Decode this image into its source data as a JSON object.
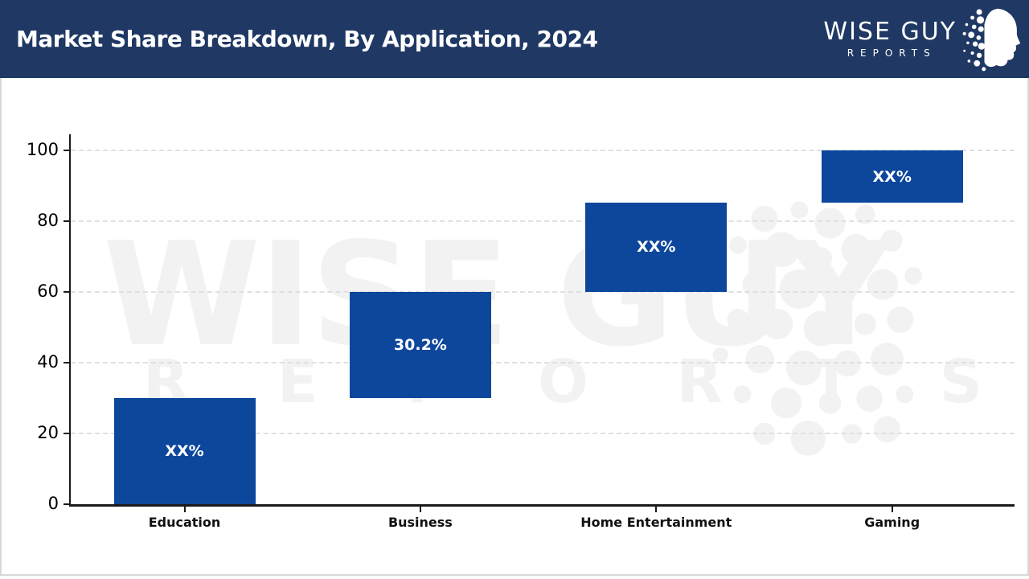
{
  "header": {
    "title": "Market Share Breakdown, By Application, 2024",
    "logo": {
      "line1": "WISE GUY",
      "line2": "REPORTS"
    }
  },
  "watermark": {
    "line1": "WISE GUY",
    "line2": "REPORTS"
  },
  "chart_data": {
    "type": "bar",
    "subtype": "waterfall",
    "title": "Market Share Breakdown, By Application, 2024",
    "xlabel": "",
    "ylabel": "",
    "ylim": [
      0,
      100
    ],
    "yticks": [
      0,
      20,
      40,
      60,
      80,
      100
    ],
    "grid": true,
    "legend": "none",
    "bar_color": "#0c479c",
    "label_color": "#ffffff",
    "categories": [
      "Education",
      "Business",
      "Home Entertainment",
      "Gaming"
    ],
    "segments": [
      {
        "category": "Education",
        "start": 0,
        "end": 29.9,
        "value": 29.9,
        "label": "XX%"
      },
      {
        "category": "Business",
        "start": 29.9,
        "end": 60.1,
        "value": 30.2,
        "label": "30.2%"
      },
      {
        "category": "Home Entertainment",
        "start": 60.1,
        "end": 85.2,
        "value": 25.1,
        "label": "XX%"
      },
      {
        "category": "Gaming",
        "start": 85.2,
        "end": 100,
        "value": 14.8,
        "label": "XX%"
      }
    ]
  }
}
